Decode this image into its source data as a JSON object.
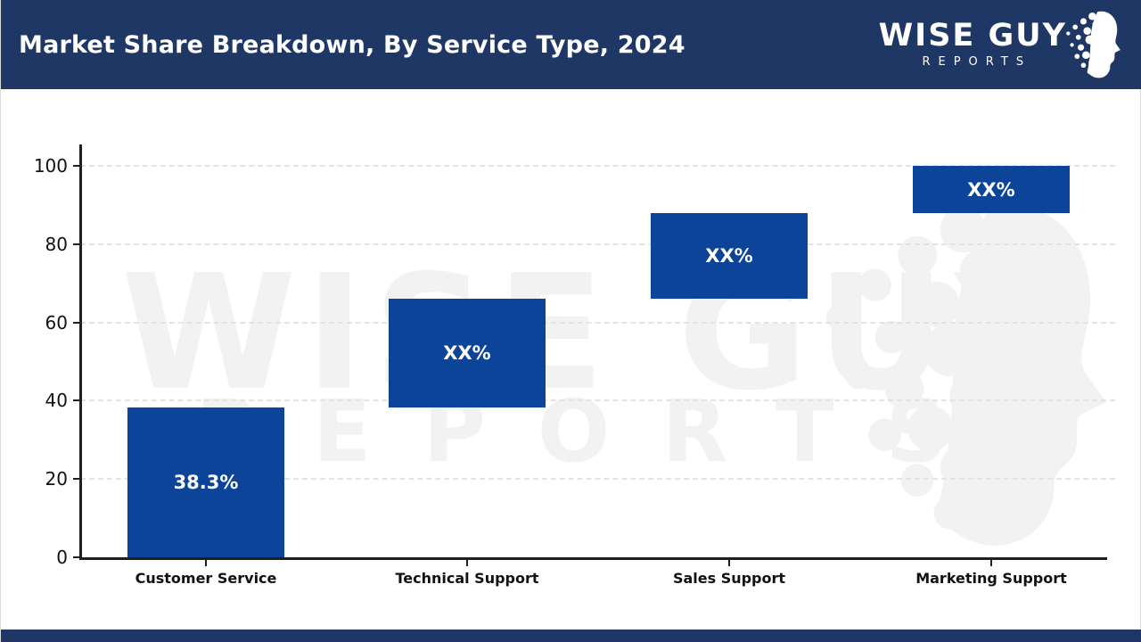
{
  "header": {
    "title": "Market Share Breakdown, By Service Type, 2024",
    "logo": {
      "line1": "WISE GUY",
      "line2": "REPORTS",
      "head_icon": "dotted-head-profile-icon"
    }
  },
  "watermark": {
    "line1": "WISE GUY",
    "line2": "REPORTS",
    "head_icon": "dotted-head-profile-watermark"
  },
  "colors": {
    "header_bg": "#1f3765",
    "footer_bg": "#1f3765",
    "bar": "#0c4499",
    "bar_label": "#ffffff",
    "axis": "#1f1f1f",
    "gridline": "#e3e3e3",
    "watermark": "#f2f2f2"
  },
  "chart_data": {
    "type": "waterfall",
    "title": "Market Share Breakdown, By Service Type, 2024",
    "categories": [
      "Customer Service",
      "Technical Support",
      "Sales Support",
      "Marketing Support"
    ],
    "series": [
      {
        "name": "Market Share",
        "segments": [
          {
            "category": "Customer Service",
            "start": 0,
            "end": 38.3,
            "label": "38.3%"
          },
          {
            "category": "Technical Support",
            "start": 38.3,
            "end": 66.1,
            "label": "XX%"
          },
          {
            "category": "Sales Support",
            "start": 66.1,
            "end": 87.9,
            "label": "XX%"
          },
          {
            "category": "Marketing Support",
            "start": 87.9,
            "end": 100,
            "label": "XX%"
          }
        ]
      }
    ],
    "xlabel": "",
    "ylabel": "",
    "ylim": [
      0,
      100
    ],
    "yticks": [
      0,
      20,
      40,
      60,
      80,
      100
    ],
    "ytick_labels": [
      "0",
      "20",
      "40",
      "60",
      "80",
      "100"
    ],
    "grid": "horizontal-dashed",
    "legend": "none"
  }
}
